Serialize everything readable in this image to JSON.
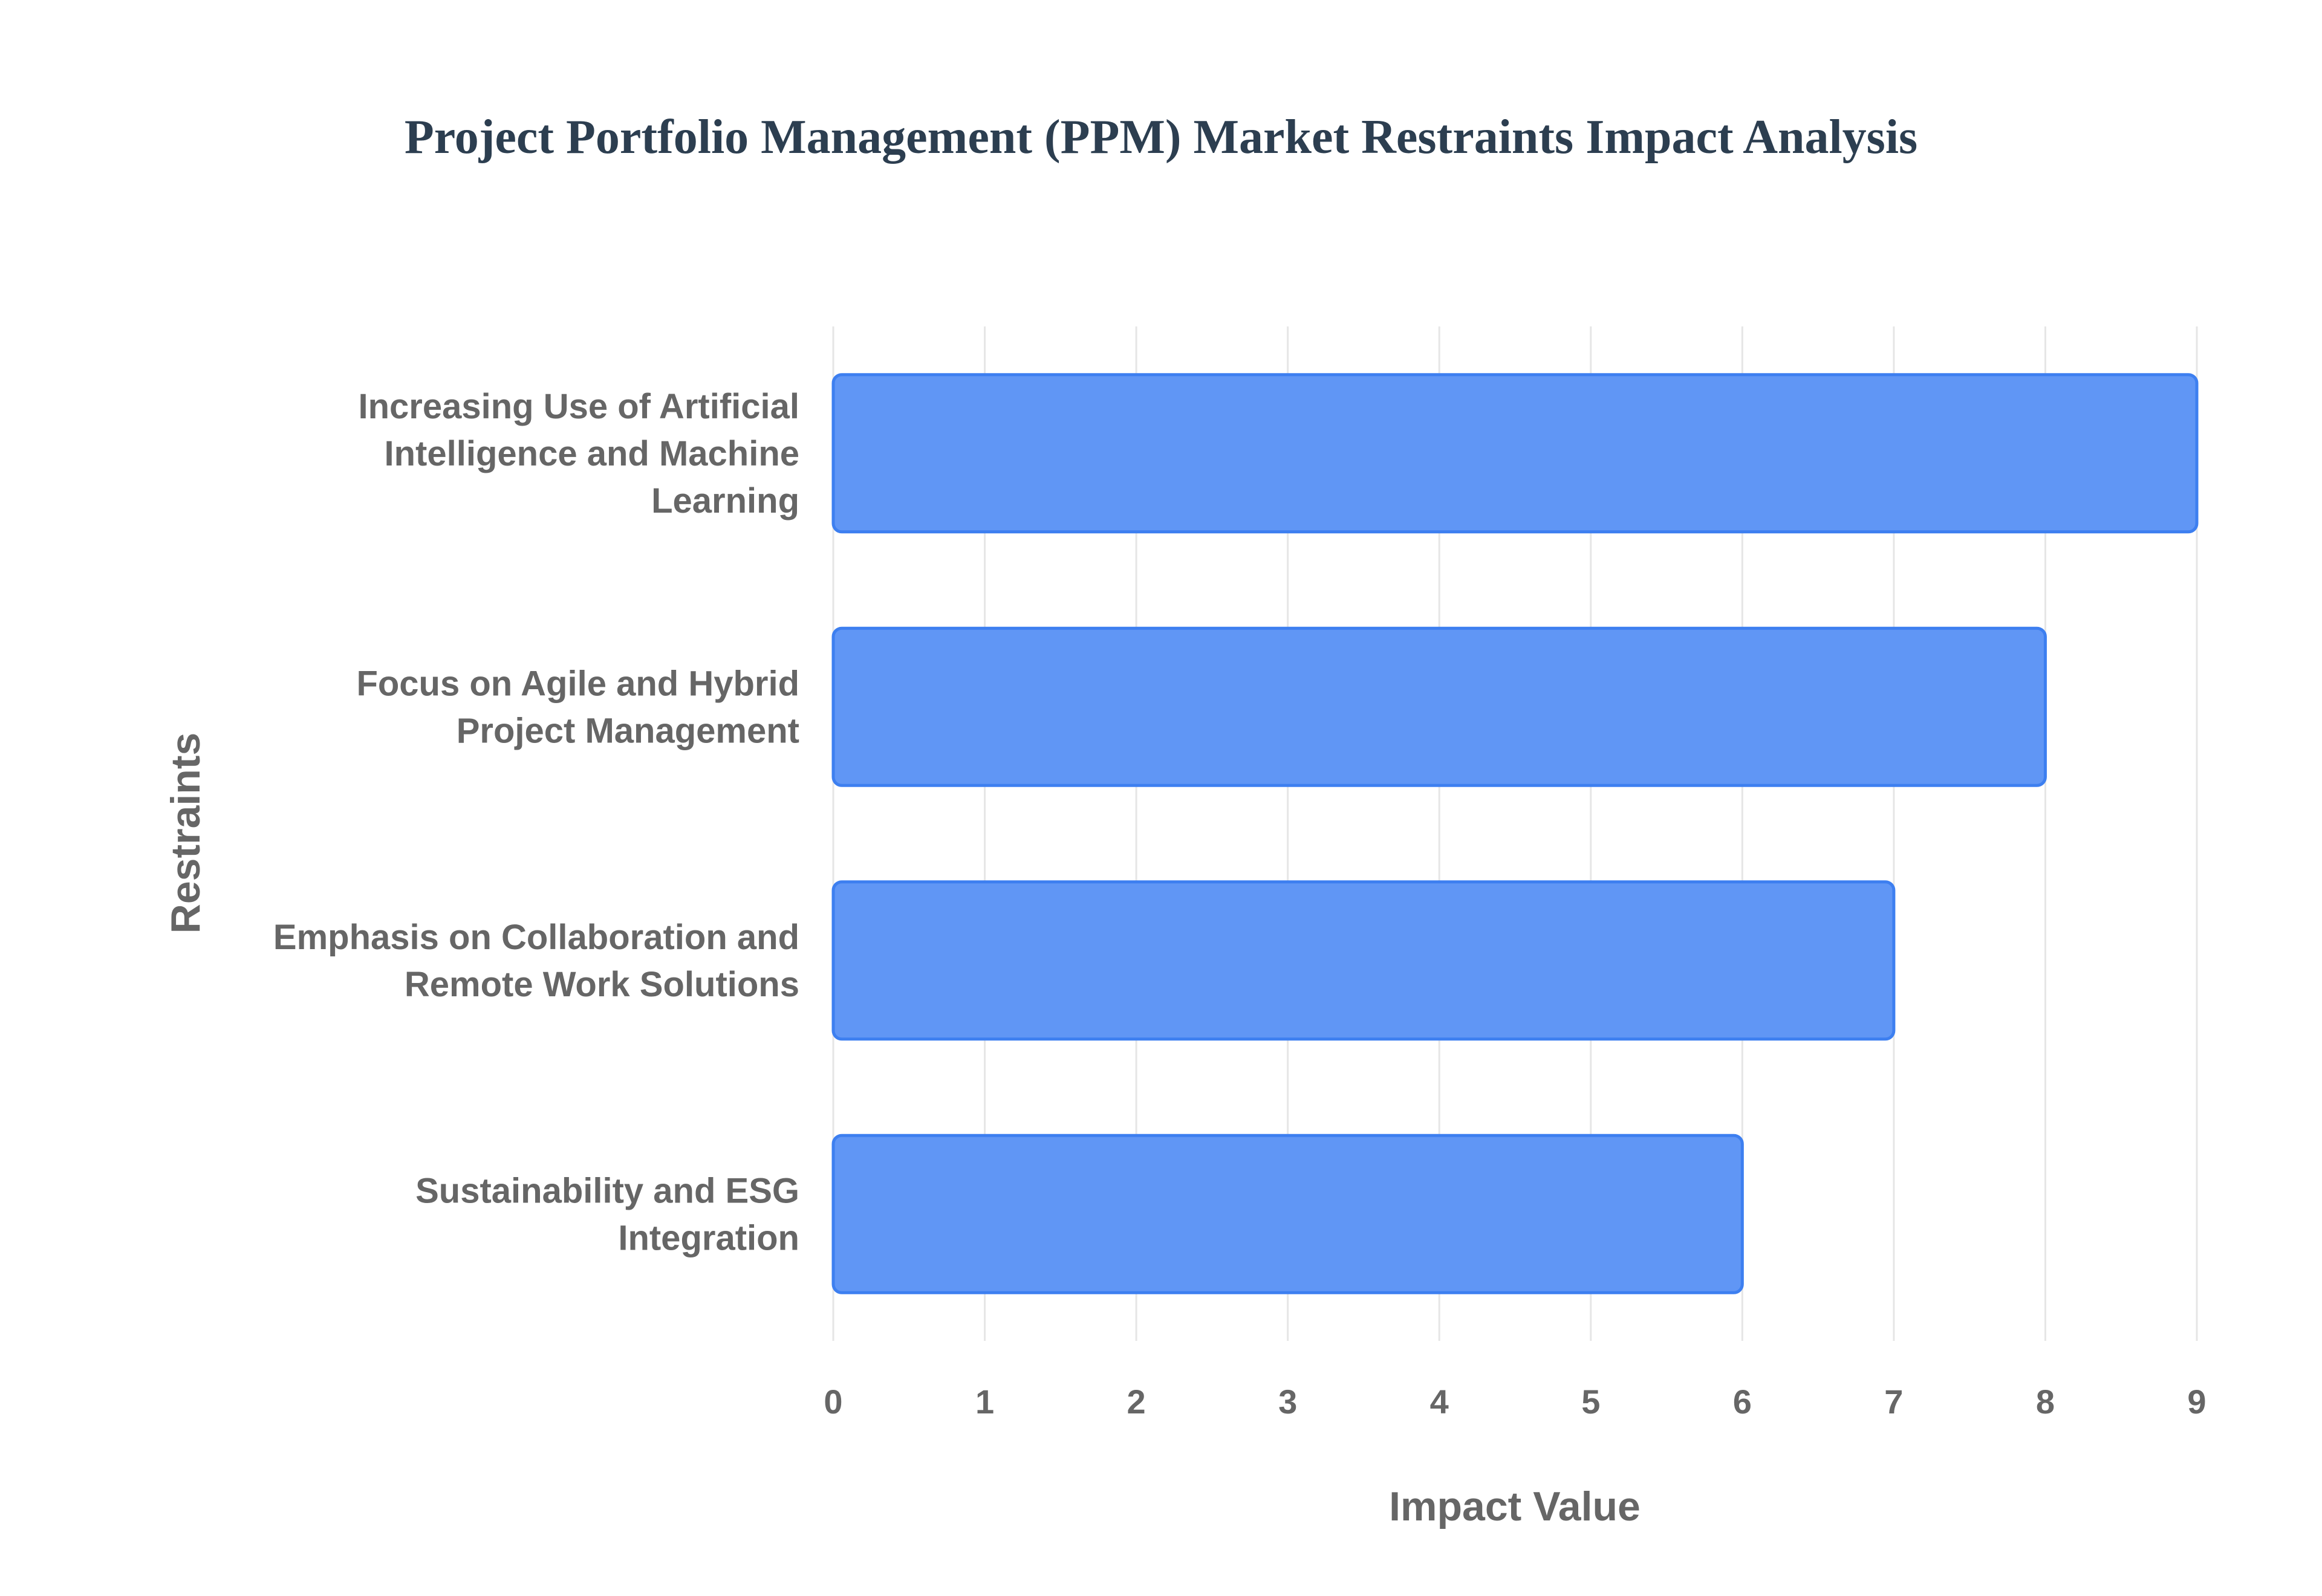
{
  "chart_data": {
    "type": "bar",
    "orientation": "horizontal",
    "title": "Project Portfolio Management (PPM) Market Restraints Impact Analysis",
    "xlabel": "Impact Value",
    "ylabel": "Restraints",
    "categories": [
      [
        "Increasing Use of Artificial",
        "Intelligence and Machine",
        "Learning"
      ],
      [
        "Focus on Agile and Hybrid",
        "Project Management"
      ],
      [
        "Emphasis on Collaboration and",
        "Remote Work Solutions"
      ],
      [
        "Sustainability and ESG",
        "Integration"
      ]
    ],
    "values": [
      9,
      8,
      7,
      6
    ],
    "xlim": [
      0,
      9
    ],
    "xticks": [
      "0",
      "1",
      "2",
      "3",
      "4",
      "5",
      "6",
      "7",
      "8",
      "9"
    ],
    "grid": true,
    "bar_color": "#6096f5",
    "bar_border_color": "#3d7ff0",
    "title_color": "#2c3e50",
    "label_color": "#666666"
  }
}
